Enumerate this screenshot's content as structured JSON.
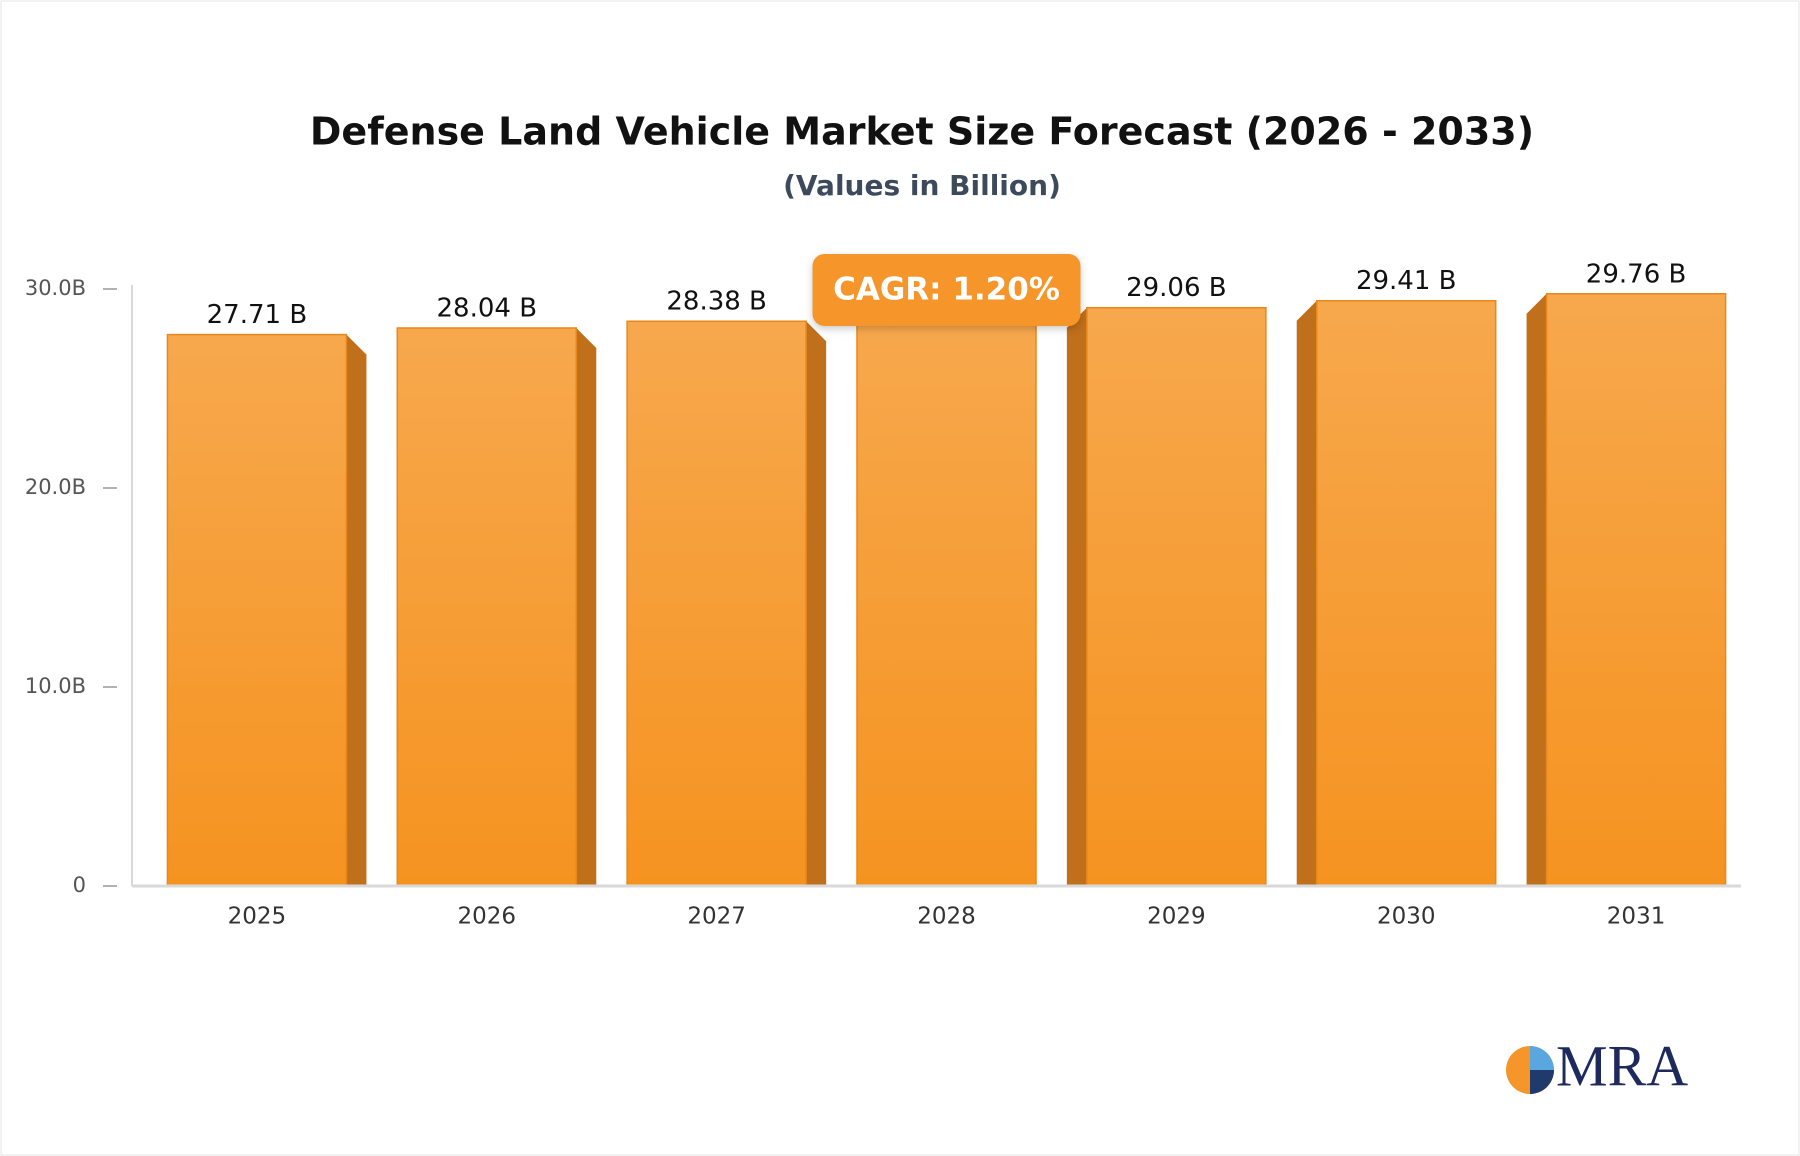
{
  "chart_data": {
    "type": "bar",
    "title": "Defense Land Vehicle Market Size Forecast (2026 - 2033)",
    "subtitle": "(Values in Billion)",
    "categories": [
      "2025",
      "2026",
      "2027",
      "2028",
      "2029",
      "2030",
      "2031"
    ],
    "values": [
      27.71,
      28.04,
      28.38,
      28.72,
      29.06,
      29.41,
      29.76
    ],
    "value_labels": [
      "27.71 B",
      "28.04 B",
      "28.38 B",
      null,
      "29.06 B",
      "29.41 B",
      "29.76 B"
    ],
    "color": "#f5952a",
    "ylim": [
      0,
      30
    ],
    "yticks": [
      0,
      {
        "value": 10,
        "label": "10.0B"
      },
      {
        "value": 20,
        "label": "20.0B"
      },
      {
        "value": 30,
        "label": "30.0B"
      }
    ],
    "annotation": "CAGR: 1.20%",
    "grid": false
  },
  "logo": "MRA"
}
